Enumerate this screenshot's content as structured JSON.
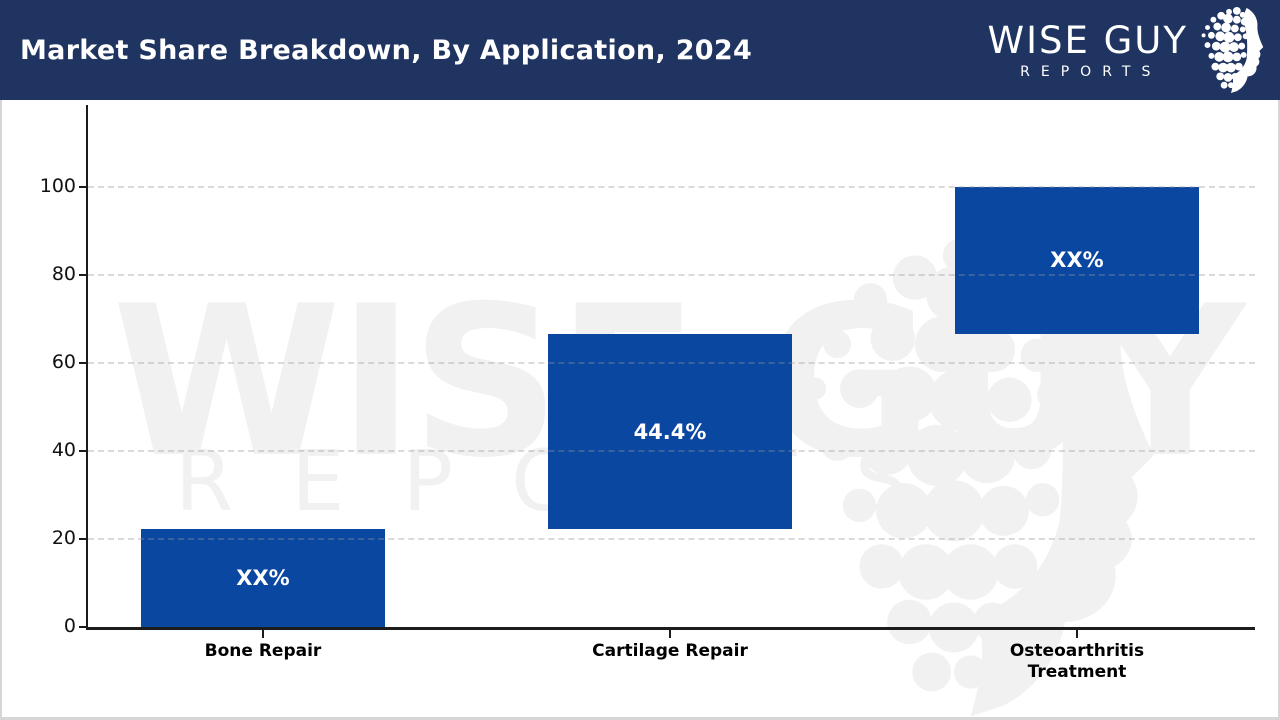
{
  "header": {
    "title": "Market Share Breakdown, By Application, 2024",
    "bg_color": "#1f3461",
    "logo": {
      "line1": "WISE GUY",
      "line2": "REPORTS"
    }
  },
  "watermark": {
    "line1": "WISE GUY",
    "line2": "REPORTS"
  },
  "chart_data": {
    "type": "bar",
    "subtype": "floating-waterfall",
    "title": "Market Share Breakdown, By Application, 2024",
    "xlabel": "",
    "ylabel": "",
    "ylim": [
      0,
      100
    ],
    "yticks": [
      0,
      20,
      40,
      60,
      80,
      100
    ],
    "grid": "horizontal-dashed",
    "legend": "none",
    "bar_color": "#0a47a1",
    "bar_label_color": "#ffffff",
    "categories": [
      "Bone Repair",
      "Cartilage Repair",
      "Osteoarthritis Treatment"
    ],
    "segments": [
      {
        "category": "Bone Repair",
        "start": 0,
        "end": 22.2,
        "label": "XX%"
      },
      {
        "category": "Cartilage Repair",
        "start": 22.2,
        "end": 66.6,
        "label": "44.4%"
      },
      {
        "category": "Osteoarthritis Treatment",
        "start": 66.6,
        "end": 100,
        "label": "XX%"
      }
    ]
  }
}
